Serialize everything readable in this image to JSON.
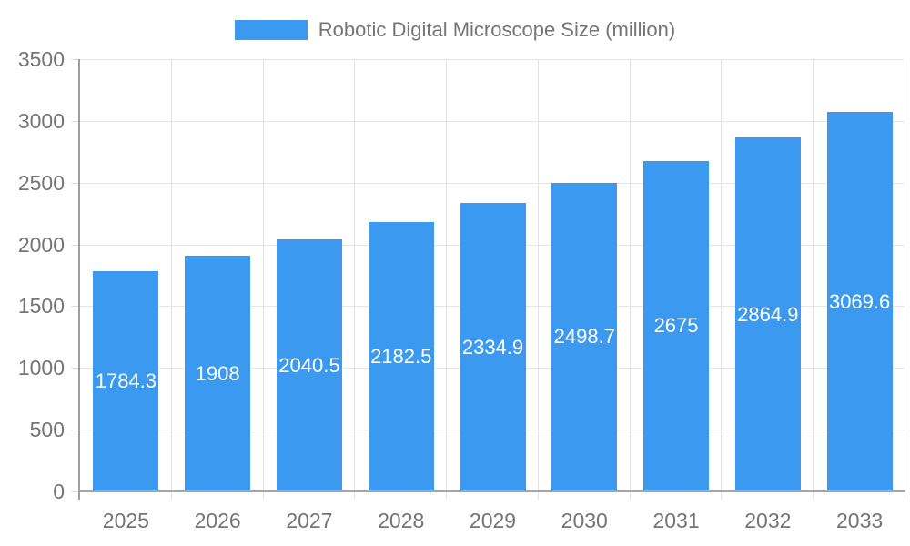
{
  "chart_data": {
    "type": "bar",
    "title": "Robotic Digital Microscope Size (million)",
    "legend_entries": [
      "Robotic Digital Microscope Size (million)"
    ],
    "legend_position": "top",
    "categories": [
      "2025",
      "2026",
      "2027",
      "2028",
      "2029",
      "2030",
      "2031",
      "2032",
      "2033"
    ],
    "values": [
      1784.3,
      1908,
      2040.5,
      2182.5,
      2334.9,
      2498.7,
      2675,
      2864.9,
      3069.6
    ],
    "value_labels": [
      "1784.3",
      "1908",
      "2040.5",
      "2182.5",
      "2334.9",
      "2498.7",
      "2675",
      "2864.9",
      "3069.6"
    ],
    "xlabel": "",
    "ylabel": "",
    "ylim": [
      0,
      3500
    ],
    "y_ticks": [
      0,
      500,
      1000,
      1500,
      2000,
      2500,
      3000,
      3500
    ],
    "grid": true,
    "colors": {
      "bar": "#3b99f0",
      "tick_text": "#757575",
      "value_text": "#ffffff",
      "grid_line": "#e6e6e6",
      "axis_line": "#9e9e9e",
      "background": "#ffffff"
    }
  }
}
